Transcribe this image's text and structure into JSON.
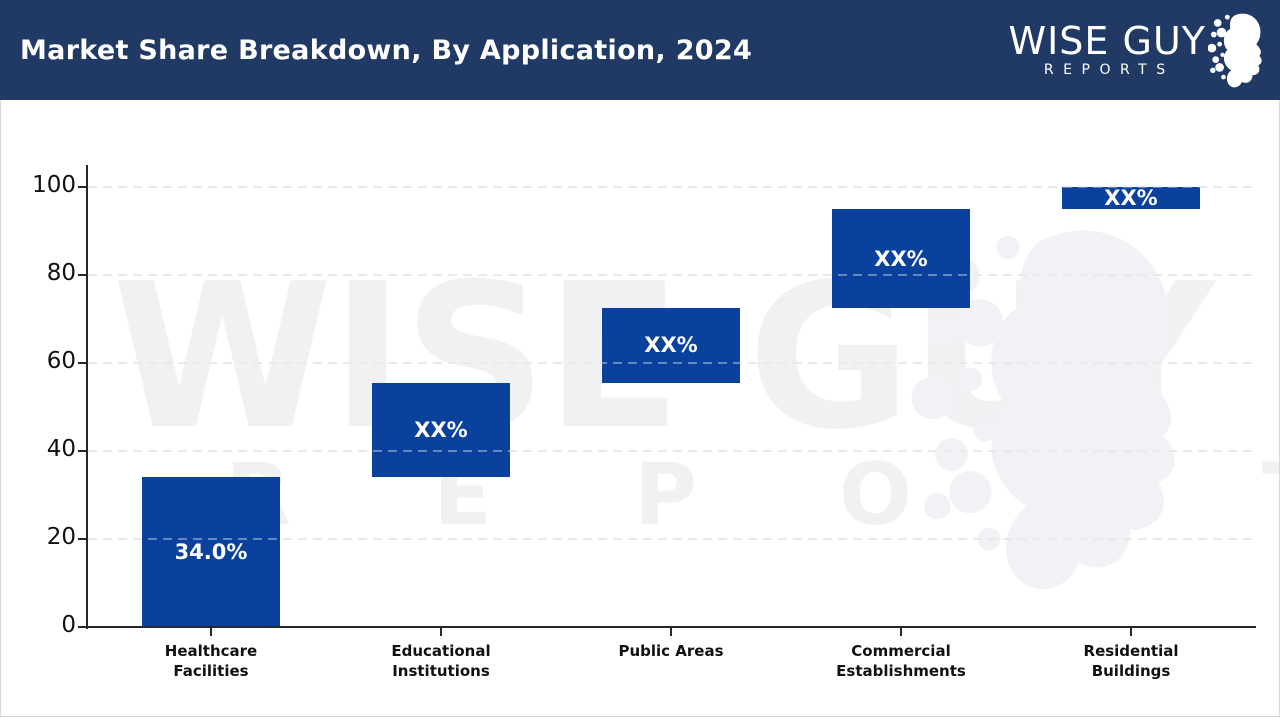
{
  "header": {
    "title": "Market Share Breakdown, By Application, 2024",
    "background_color": "#203a65",
    "logo": {
      "line1": "WISE GUY",
      "line2": "REPORTS"
    }
  },
  "watermark": {
    "line1": "WISE GUY",
    "line2": "R E P O R T S"
  },
  "chart_data": {
    "type": "bar",
    "subtype": "waterfall",
    "title": "Market Share Breakdown, By Application, 2024",
    "xlabel": "",
    "ylabel": "",
    "ylim": [
      0,
      105
    ],
    "yticks": [
      0,
      20,
      40,
      60,
      80,
      100
    ],
    "grid": "horizontal-dashed",
    "legend": "none",
    "bar_color": "#09419d",
    "bar_label_color": "#ffffff",
    "categories": [
      "Healthcare\nFacilities",
      "Educational\nInstitutions",
      "Public Areas",
      "Commercial\nEstablishments",
      "Residential\nBuildings"
    ],
    "segments": [
      {
        "category": "Healthcare\nFacilities",
        "start": 0,
        "end": 34,
        "label": "34.0%"
      },
      {
        "category": "Educational\nInstitutions",
        "start": 34,
        "end": 55.5,
        "label": "XX%"
      },
      {
        "category": "Public Areas",
        "start": 55.5,
        "end": 72.5,
        "label": "XX%"
      },
      {
        "category": "Commercial\nEstablishments",
        "start": 72.5,
        "end": 95,
        "label": "XX%"
      },
      {
        "category": "Residential\nBuildings",
        "start": 95,
        "end": 100,
        "label": "XX%"
      }
    ]
  }
}
